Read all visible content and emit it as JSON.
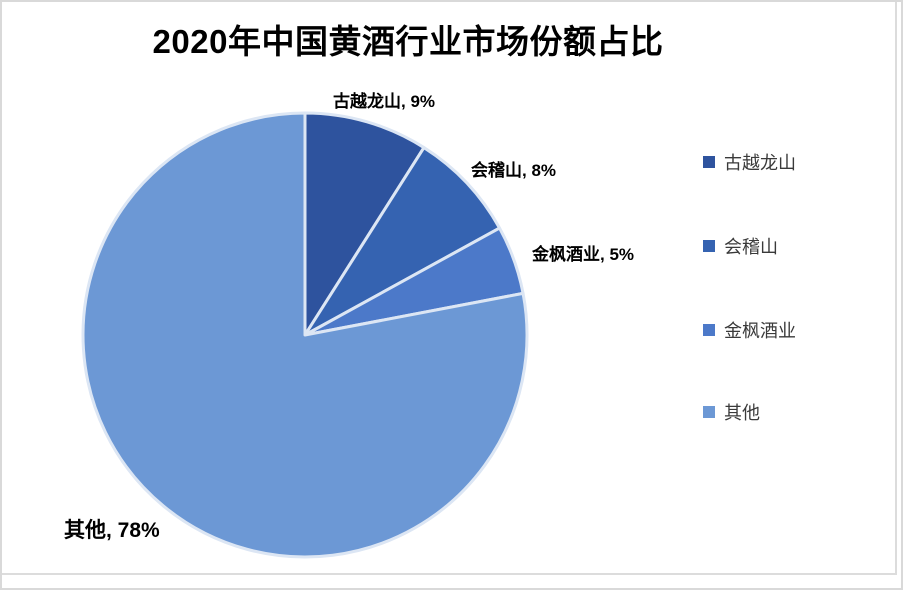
{
  "chart_data": {
    "type": "pie",
    "title": "2020年中国黄酒行业市场份额占比",
    "categories": [
      "古越龙山",
      "会稽山",
      "金枫酒业",
      "其他"
    ],
    "values": [
      9,
      8,
      5,
      78
    ],
    "unit": "%",
    "start_angle_deg": 0,
    "direction": "clockwise",
    "legend_position": "right",
    "separator_color": "#dce6f4",
    "slices": [
      {
        "label": "古越龙山",
        "value": 9,
        "color": "#2e539e",
        "data_label": "古越龙山, 9%"
      },
      {
        "label": "会稽山",
        "value": 8,
        "color": "#3563b1",
        "data_label": "会稽山, 8%"
      },
      {
        "label": "金枫酒业",
        "value": 5,
        "color": "#4c79c9",
        "data_label": "金枫酒业, 5%"
      },
      {
        "label": "其他",
        "value": 78,
        "color": "#6c98d5",
        "data_label": "其他, 78%"
      }
    ]
  }
}
